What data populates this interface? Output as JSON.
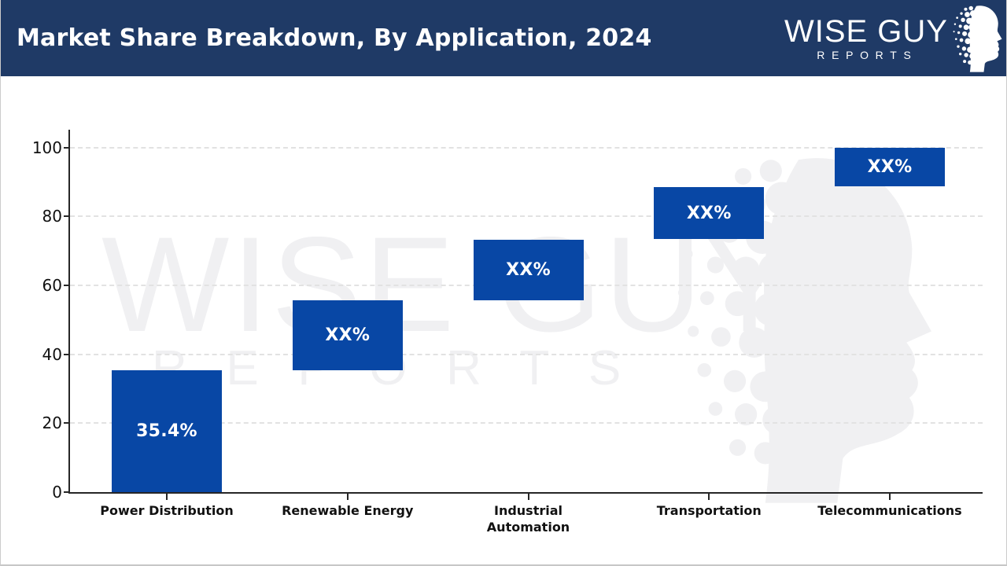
{
  "header": {
    "title": "Market Share Breakdown, By Application, 2024",
    "bg_color": "#1F3A66",
    "logo": {
      "name": "WISE GUY",
      "subtitle": "REPORTS",
      "face_icon": "dotted-face-profile"
    }
  },
  "watermark": {
    "line1": "WISE GUY",
    "line2": "REPORTS",
    "color": "#f0f0f2"
  },
  "chart_data": {
    "type": "bar",
    "subtype": "waterfall",
    "title": "Market Share Breakdown, By Application, 2024",
    "categories": [
      "Power Distribution",
      "Renewable Energy",
      "Industrial Automation",
      "Transportation",
      "Telecommunications"
    ],
    "tick_label_lines": [
      [
        "Power Distribution"
      ],
      [
        "Renewable Energy"
      ],
      [
        "Industrial",
        "Automation"
      ],
      [
        "Transportation"
      ],
      [
        "Telecommunications"
      ]
    ],
    "segments": [
      {
        "category": "Power Distribution",
        "start": 0,
        "end": 35.4,
        "label": "35.4%"
      },
      {
        "category": "Renewable Energy",
        "start": 35.4,
        "end": 55.6,
        "label": "XX%"
      },
      {
        "category": "Industrial Automation",
        "start": 55.6,
        "end": 73.3,
        "label": "XX%"
      },
      {
        "category": "Transportation",
        "start": 73.4,
        "end": 88.4,
        "label": "XX%"
      },
      {
        "category": "Telecommunications",
        "start": 88.8,
        "end": 100,
        "label": "XX%"
      }
    ],
    "xlabel": "",
    "ylabel": "",
    "ylim": [
      0,
      100
    ],
    "yticks": [
      0,
      20,
      40,
      60,
      80,
      100
    ],
    "grid": "horizontal-dashed",
    "legend": "none",
    "bar_color": "#0847A5",
    "value_label_color": "#ffffff"
  }
}
